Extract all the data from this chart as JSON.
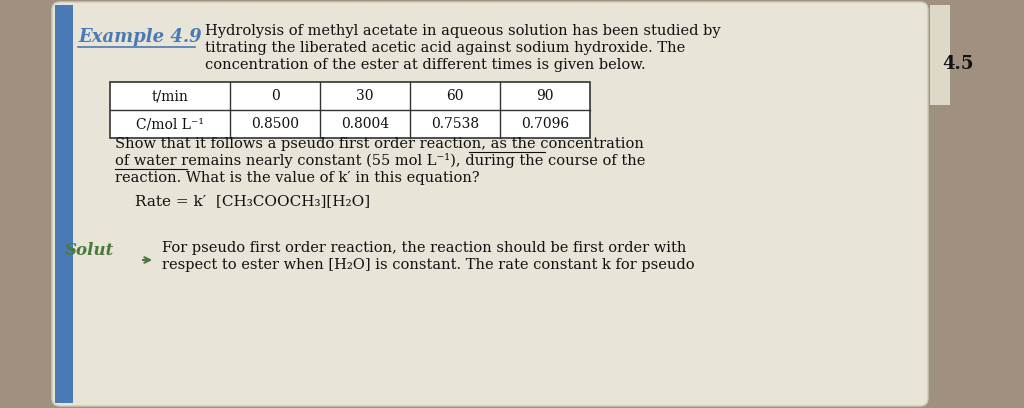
{
  "fig_bg": "#a09080",
  "page_bg": "#ddd8c8",
  "page_bg2": "#e8e4d8",
  "example_label": "Example 4.9",
  "example_color": "#4a7ab5",
  "title_text1": "Hydrolysis of methyl acetate in aqueous solution has been studied by",
  "title_text2": "titrating the liberated acetic acid against sodium hydroxide. The",
  "title_text3": "concentration of the ester at different times is given below.",
  "table_headers": [
    "t/min",
    "0",
    "30",
    "60",
    "90"
  ],
  "table_row_label": "C/mol L⁻¹",
  "table_values": [
    "0.8500",
    "0.8004",
    "0.7538",
    "0.7096"
  ],
  "body_line1": "Show that it follows a pseudo first order reaction, as the concentration",
  "body_line2": "of water remains nearly constant (55 mol L⁻¹), during the course of the",
  "body_line3": "reaction. What is the value of k′ in this equation?",
  "body_line4": "Rate = k′  [CH₃COOCH₃][H₂O]",
  "solution_label": "Solut",
  "sol_arrow": "►",
  "solution_line1": "For pseudo first order reaction, the reaction should be first order with",
  "solution_line2": "respect to ester when [H₂O] is constant. The rate constant k for pseudo",
  "right_number": "4.5",
  "text_color": "#111111",
  "accent_blue": "#4a7ab5",
  "solution_green": "#4a7a3a",
  "table_border": "#333333"
}
